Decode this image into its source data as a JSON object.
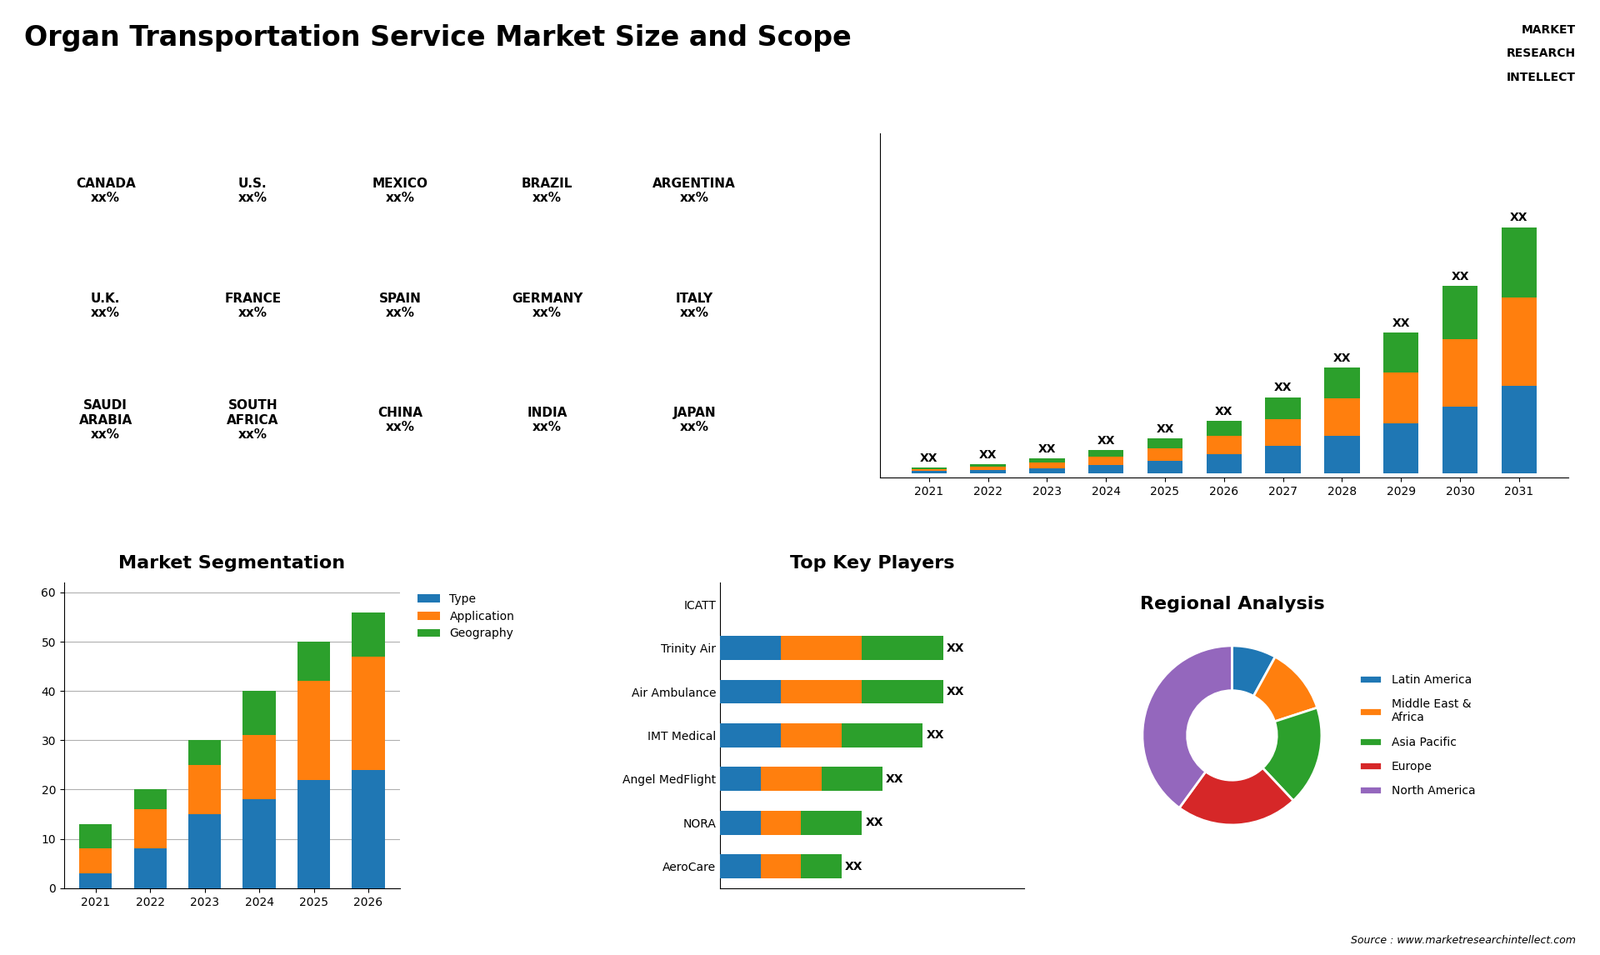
{
  "title": "Organ Transportation Service Market Size and Scope",
  "annotations": [
    "MARKET",
    "RESEARCH",
    "INTELLECT",
    "Source : www.marketresearchintellect.com"
  ],
  "chart_data": [
    {
      "type": "map",
      "annotations": [
        "CANADA\nxx%",
        "U.S.\nxx%",
        "MEXICO\nxx%",
        "BRAZIL\nxx%",
        "ARGENTINA\nxx%",
        "U.K.\nxx%",
        "FRANCE\nxx%",
        "SPAIN\nxx%",
        "GERMANY\nxx%",
        "ITALY\nxx%",
        "SAUDI\nARABIA\nxx%",
        "SOUTH\nAFRICA\nxx%",
        "CHINA\nxx%",
        "INDIA\nxx%",
        "JAPAN\nxx%"
      ]
    },
    {
      "type": "bar",
      "stacked": true,
      "categories": [
        "2021",
        "2022",
        "2023",
        "2024",
        "2025",
        "2026",
        "2027",
        "2028",
        "2029",
        "2030",
        "2031"
      ],
      "series": [
        {
          "values": [
            1.0,
            1.5,
            2.5,
            4.0,
            6.0,
            9.0,
            13.0,
            18.0,
            24.0,
            32.0,
            42.0
          ]
        },
        {
          "values": [
            1.0,
            1.5,
            2.5,
            4.0,
            6.0,
            9.0,
            13.0,
            18.0,
            24.0,
            32.0,
            42.0
          ]
        },
        {
          "values": [
            0.8,
            1.2,
            2.0,
            3.2,
            4.8,
            7.2,
            10.4,
            14.4,
            19.2,
            25.6,
            33.6
          ]
        }
      ],
      "ylim": [
        -2,
        162.288
      ],
      "tick_labels": "x",
      "data_labels": true,
      "value_labels": [
        "XX",
        "XX",
        "XX",
        "XX",
        "XX",
        "XX",
        "XX",
        "XX",
        "XX",
        "XX",
        "XX"
      ]
    },
    {
      "type": "bar",
      "title": "Market Segmentation",
      "stacked": true,
      "categories": [
        "2021",
        "2022",
        "2023",
        "2024",
        "2025",
        "2026"
      ],
      "series": [
        {
          "name": "Type",
          "values": [
            3,
            8,
            15,
            18,
            22,
            24
          ]
        },
        {
          "name": "Application",
          "values": [
            5,
            8,
            10,
            13,
            20,
            23
          ]
        },
        {
          "name": "Geography",
          "values": [
            5,
            4,
            5,
            9,
            8,
            9
          ]
        }
      ],
      "ylim": [
        0,
        62
      ],
      "yticks": [
        0,
        10,
        20,
        30,
        40,
        50,
        60
      ],
      "grid": true,
      "legend": "upper left"
    },
    {
      "type": "bar",
      "title": "Top Key Players",
      "orientation": "horizontal",
      "stacked": true,
      "categories": [
        "ICATT",
        "Trinity Air",
        "Air Ambulance",
        "IMT Medical",
        "Angel MedFlight",
        "NORA",
        "AeroCare"
      ],
      "series": [
        {
          "values": [
            0,
            3,
            3,
            3,
            2,
            2,
            2
          ]
        },
        {
          "values": [
            0,
            4,
            4,
            3,
            3,
            2,
            2
          ]
        },
        {
          "values": [
            0,
            4,
            4,
            4,
            3,
            3,
            2
          ]
        }
      ],
      "xlim": [
        0,
        15
      ],
      "tick_labels": "y",
      "data_labels": true,
      "value_labels": [
        null,
        "XX",
        "XX",
        "XX",
        "XX",
        "XX",
        "XX"
      ]
    },
    {
      "type": "pie",
      "title": "Regional Analysis",
      "categories": [
        "Latin America",
        "Middle East &\nAfrica",
        "Asia Pacific",
        "Europe",
        "North America"
      ],
      "values": [
        8,
        12,
        18,
        22,
        40
      ],
      "legend": "center left"
    }
  ]
}
